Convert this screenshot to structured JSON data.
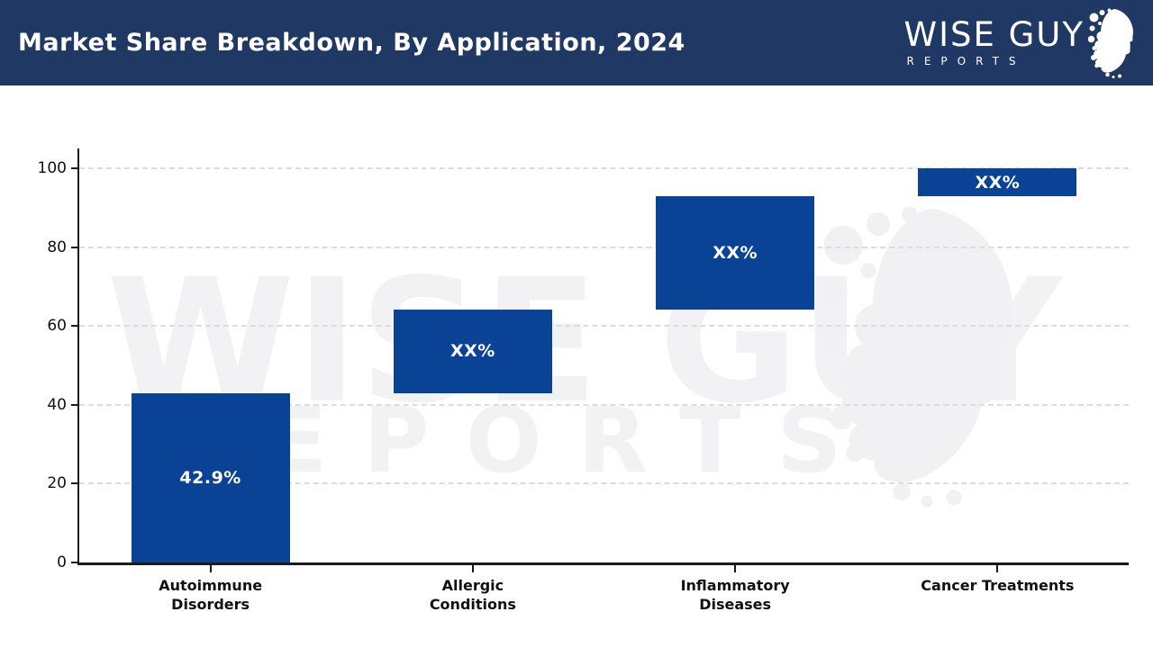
{
  "header": {
    "logo": {
      "wordmark": "WISE GUY",
      "reports": "REPORTS"
    }
  },
  "watermark": {
    "wordmark": "WISE GUY",
    "reports": "REPORTS"
  },
  "colors": {
    "header_bg": "#1f3864",
    "bar": "#0a4296",
    "bar_label_text": "#ffffff",
    "title_text": "#ffffff",
    "axis": "#1a1a1a",
    "gridline": "#dcdcdc",
    "watermark": "#f2f2f4",
    "tick_text": "#111111"
  },
  "chart_data": {
    "type": "bar",
    "subtype": "waterfall",
    "title": "Market Share Breakdown, By Application, 2024",
    "categories": [
      "Autoimmune Disorders",
      "Allergic Conditions",
      "Inflammatory Diseases",
      "Cancer Treatments"
    ],
    "category_label_lines": [
      [
        "Autoimmune",
        "Disorders"
      ],
      [
        "Allergic",
        "Conditions"
      ],
      [
        "Inflammatory",
        "Diseases"
      ],
      [
        "Cancer Treatments"
      ]
    ],
    "segments": [
      {
        "category": "Autoimmune Disorders",
        "start": 0,
        "end": 42.9,
        "label": "42.9%"
      },
      {
        "category": "Allergic Conditions",
        "start": 42.9,
        "end": 64.2,
        "label": "XX%"
      },
      {
        "category": "Inflammatory Diseases",
        "start": 64.2,
        "end": 92.9,
        "label": "XX%"
      },
      {
        "category": "Cancer Treatments",
        "start": 92.9,
        "end": 100,
        "label": "XX%"
      }
    ],
    "xlabel": "",
    "ylabel": "",
    "y_ticks": [
      0,
      20,
      40,
      60,
      80,
      100
    ],
    "ylim": [
      0,
      105
    ],
    "grid": "dashed-horizontal",
    "legend": "none"
  }
}
